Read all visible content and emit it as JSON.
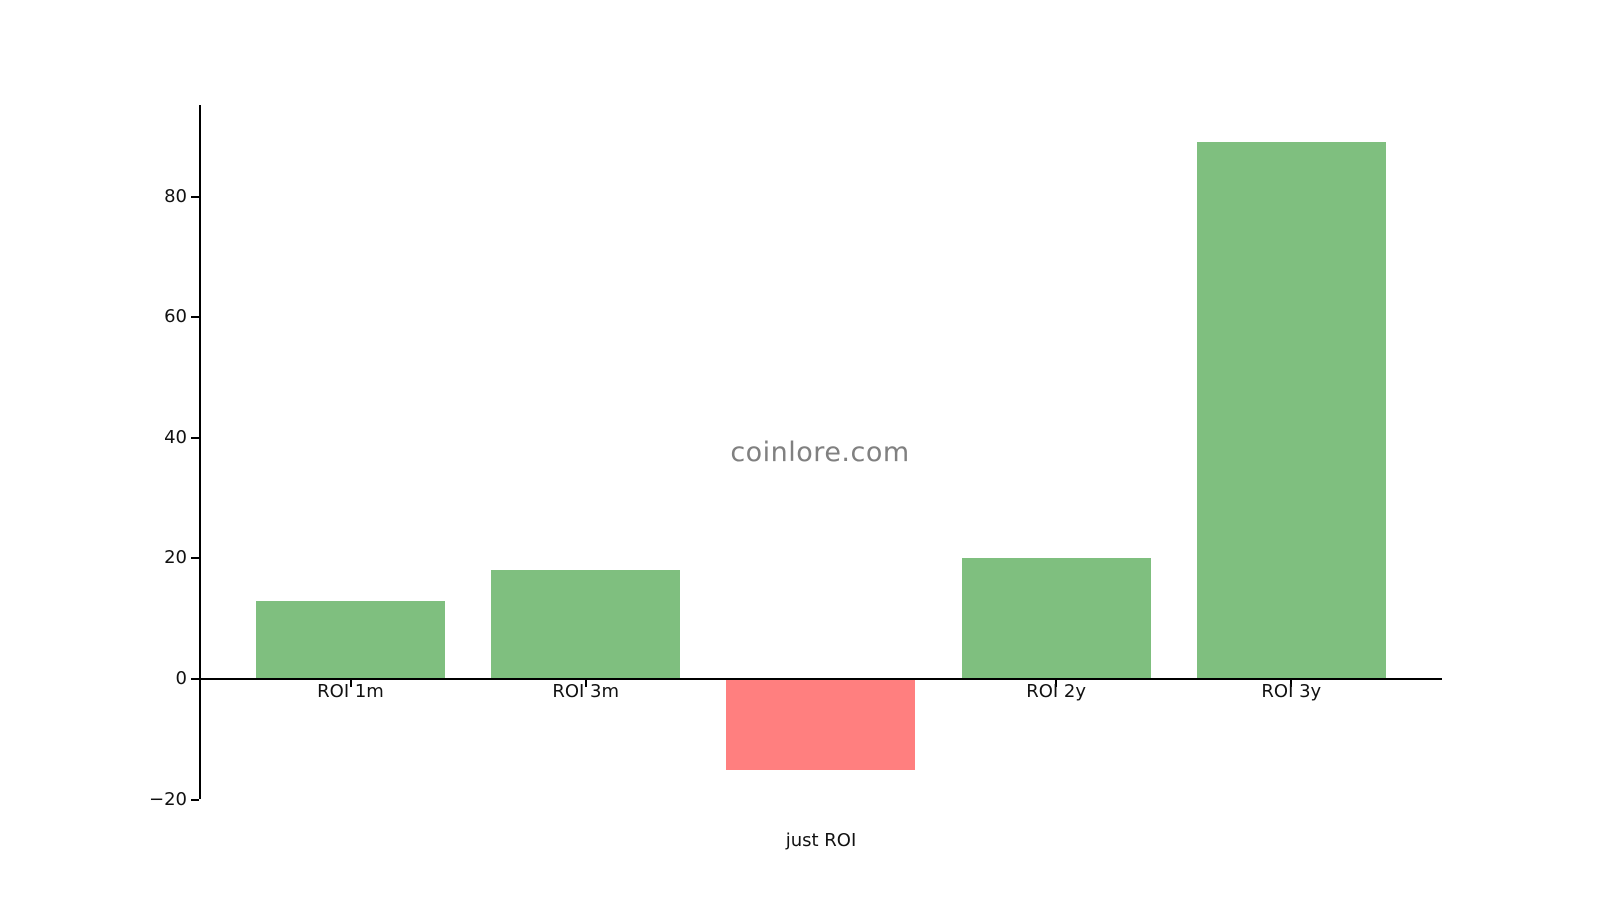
{
  "page": {
    "background": "#ffffff"
  },
  "watermark": {
    "text": "coinlore.com",
    "color": "#808080"
  },
  "chart_data": {
    "type": "bar",
    "title": "",
    "xlabel": "just ROI",
    "ylabel": "",
    "categories": [
      "ROI 1m",
      "ROI 3m",
      "",
      "ROI 2y",
      "ROI 3y"
    ],
    "values": [
      13,
      18,
      -15,
      20,
      89
    ],
    "positive_color": "#7fbf7f",
    "negative_color": "#ff7f7f",
    "axis_color": "#000000",
    "text_color": "#111111",
    "yticks": [
      {
        "value": -20,
        "label": "−20"
      },
      {
        "value": 0,
        "label": "0"
      },
      {
        "value": 20,
        "label": "20"
      },
      {
        "value": 40,
        "label": "40"
      },
      {
        "value": 60,
        "label": "60"
      },
      {
        "value": 80,
        "label": "80"
      }
    ],
    "ylim": [
      -20,
      95
    ],
    "grid": false,
    "legend": false
  }
}
